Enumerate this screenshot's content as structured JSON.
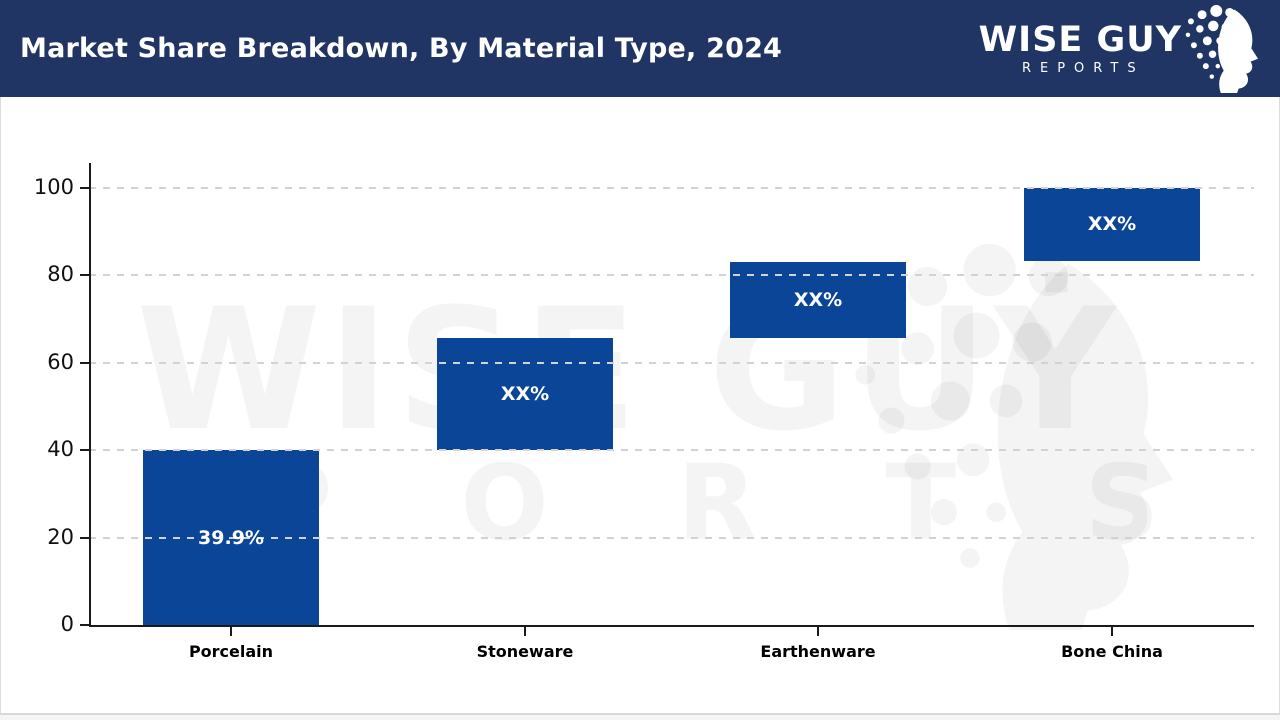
{
  "header": {
    "title": "Market Share Breakdown, By Material Type, 2024",
    "bg_color": "#213564",
    "logo": {
      "line1": "WISE GUY",
      "line2": "REPORTS"
    }
  },
  "watermark": {
    "line1": "WISE GUẎ",
    "line2": "P O R T S"
  },
  "chart_data": {
    "type": "bar",
    "variant": "waterfall",
    "title": "Market Share Breakdown, By Material Type, 2024",
    "xlabel": "",
    "ylabel": "",
    "ylim": [
      0,
      100
    ],
    "yticks": [
      0,
      20,
      40,
      60,
      80,
      100
    ],
    "grid": "dashed-horizontal",
    "legend": "none",
    "bar_color": "#0b4598",
    "label_color": "#ffffff",
    "categories": [
      "Porcelain",
      "Stoneware",
      "Earthenware",
      "Bone China"
    ],
    "series": [
      {
        "name": "Market Share",
        "segments": [
          {
            "start": 0,
            "end": 39.9,
            "label": "39.9%"
          },
          {
            "start": 40,
            "end": 65.6,
            "label": "XX%"
          },
          {
            "start": 65.7,
            "end": 83,
            "label": "XX%"
          },
          {
            "start": 83.3,
            "end": 100,
            "label": "XX%"
          }
        ]
      }
    ]
  }
}
